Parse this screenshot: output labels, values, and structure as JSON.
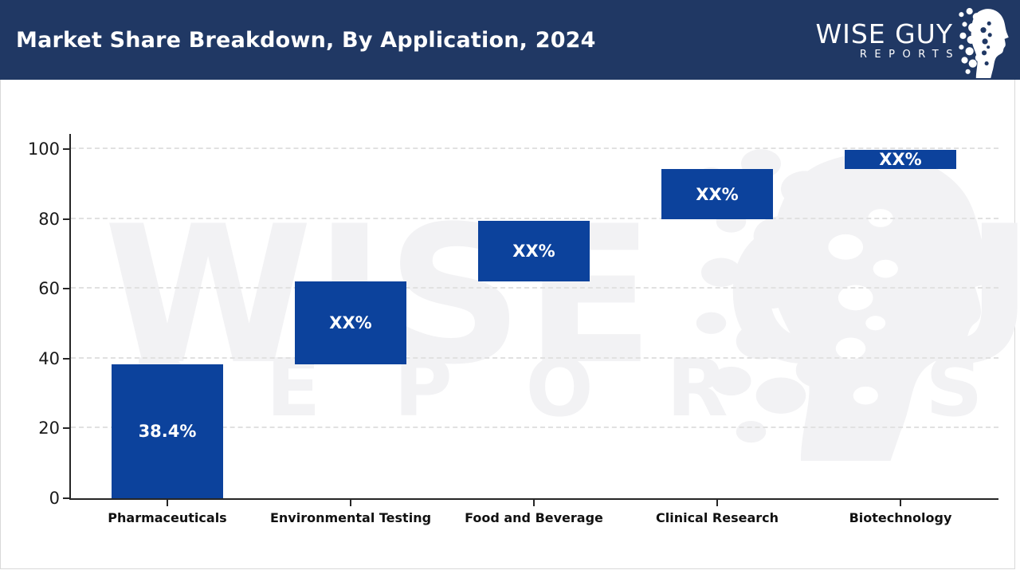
{
  "header": {
    "title": "Market Share Breakdown, By Application, 2024",
    "logo": {
      "line1": "WISE GUY",
      "line2": "REPORTS"
    }
  },
  "watermark": {
    "line1": "WISE GUY",
    "line2": "REPORTS"
  },
  "colors": {
    "header_bg": "#203864",
    "bar": "#0c429c",
    "axis": "#262626",
    "grid": "#e1e1e1",
    "bar_label": "#ffffff",
    "watermark": "#f2f2f4"
  },
  "chart_data": {
    "type": "bar",
    "subtype": "waterfall",
    "title": "Market Share Breakdown, By Application, 2024",
    "xlabel": "",
    "ylabel": "",
    "ylim": [
      0,
      104
    ],
    "y_ticks": [
      0,
      20,
      40,
      60,
      80,
      100
    ],
    "grid": "horizontal-dashed",
    "legend": "none",
    "categories": [
      "Pharmaceuticals",
      "Environmental Testing",
      "Food and Beverage",
      "Clinical Research",
      "Biotechnology"
    ],
    "segments": [
      {
        "category": "Pharmaceuticals",
        "start": 0,
        "end": 38.4,
        "label": "38.4%"
      },
      {
        "category": "Environmental Testing",
        "start": 38.4,
        "end": 62.1,
        "label": "XX%"
      },
      {
        "category": "Food and Beverage",
        "start": 62.1,
        "end": 79.5,
        "label": "XX%"
      },
      {
        "category": "Clinical Research",
        "start": 79.8,
        "end": 94.3,
        "label": "XX%"
      },
      {
        "category": "Biotechnology",
        "start": 94.4,
        "end": 99.8,
        "label": "XX%"
      }
    ]
  }
}
